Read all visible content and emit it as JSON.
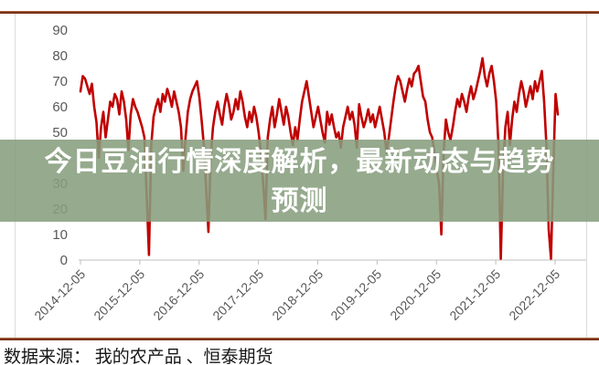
{
  "banner": {
    "title": "今日豆油行情深度解析，最新动态与趋势\n预测",
    "bg_color": "#96aa8e",
    "text_color": "#ffffff"
  },
  "footer": {
    "text": "数据来源：  我的农产品 、恒泰期货"
  },
  "frame": {
    "rule_color": "#7a2c10",
    "border_color": "#dcdcdc"
  },
  "chart_data": {
    "type": "line",
    "title": "",
    "xlabel": "",
    "ylabel": "",
    "x_start": "2014-12-05",
    "x_end": "2022-12-05",
    "x_tick_labels": [
      "2014-12-05",
      "2015-12-05",
      "2016-12-05",
      "2017-12-05",
      "2018-12-05",
      "2019-12-05",
      "2020-12-05",
      "2021-12-05",
      "2022-12-05"
    ],
    "y_ticks": [
      0,
      10,
      20,
      30,
      40,
      50,
      60,
      70,
      80,
      90
    ],
    "ylim": [
      0,
      95
    ],
    "grid": false,
    "legend": "none",
    "axis_color": "#bfbfbf",
    "label_color": "#595959",
    "series": [
      {
        "name": "",
        "color": "#c00000",
        "values": [
          66,
          72,
          71,
          68,
          65,
          69,
          60,
          54,
          40,
          52,
          58,
          48,
          55,
          62,
          60,
          65,
          63,
          57,
          66,
          62,
          55,
          43,
          57,
          63,
          60,
          58,
          55,
          52,
          48,
          25,
          2,
          45,
          56,
          60,
          63,
          58,
          65,
          62,
          67,
          64,
          60,
          66,
          62,
          58,
          52,
          35,
          48,
          58,
          63,
          66,
          68,
          70,
          64,
          55,
          45,
          28,
          11,
          40,
          52,
          58,
          62,
          57,
          53,
          60,
          65,
          61,
          55,
          58,
          63,
          59,
          66,
          62,
          56,
          52,
          58,
          54,
          60,
          56,
          50,
          42,
          30,
          16,
          48,
          55,
          60,
          52,
          57,
          63,
          58,
          53,
          60,
          56,
          50,
          45,
          52,
          47,
          55,
          62,
          66,
          70,
          64,
          58,
          52,
          56,
          60,
          55,
          50,
          46,
          58,
          53,
          57,
          52,
          48,
          50,
          44,
          52,
          56,
          60,
          55,
          58,
          53,
          44,
          61,
          56,
          52,
          55,
          59,
          54,
          57,
          52,
          56,
          60,
          55,
          50,
          42,
          48,
          55,
          62,
          68,
          72,
          70,
          66,
          62,
          67,
          71,
          68,
          73,
          74,
          76,
          70,
          64,
          62,
          55,
          50,
          48,
          42,
          35,
          30,
          10,
          42,
          55,
          50,
          47,
          52,
          58,
          63,
          60,
          65,
          62,
          58,
          64,
          68,
          63,
          66,
          70,
          74,
          79,
          72,
          68,
          73,
          76,
          70,
          62,
          45,
          0.5,
          35,
          52,
          58,
          45,
          55,
          62,
          58,
          65,
          70,
          66,
          60,
          64,
          68,
          63,
          70,
          66,
          70,
          74,
          62,
          45,
          12,
          0.5,
          35,
          65,
          57
        ]
      }
    ]
  }
}
